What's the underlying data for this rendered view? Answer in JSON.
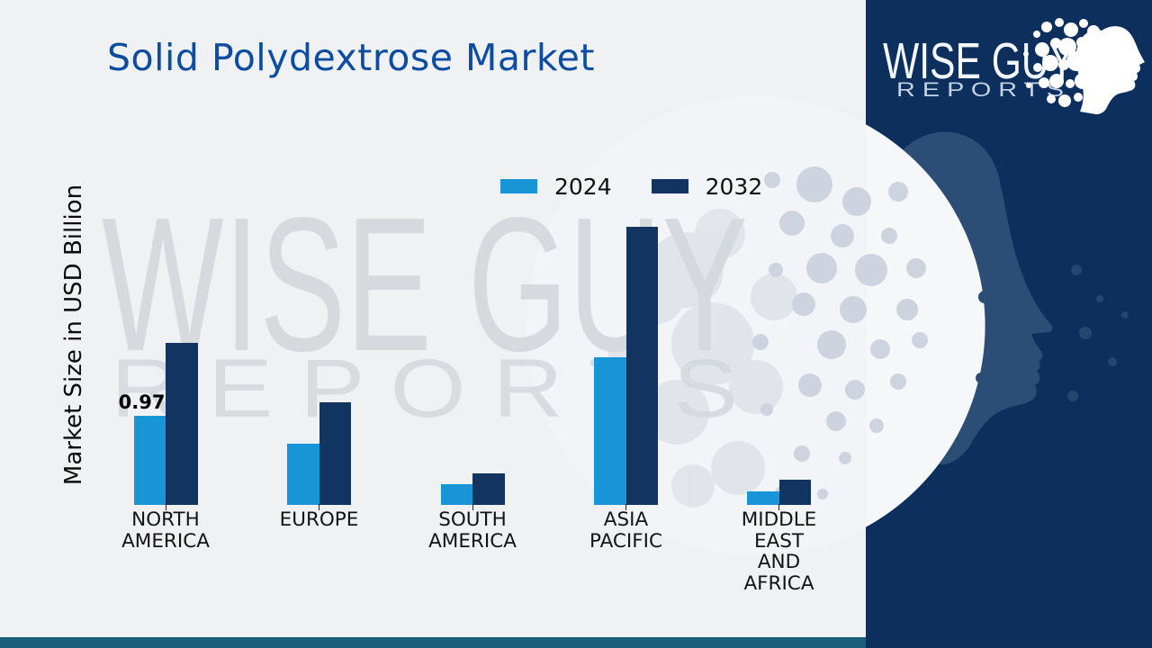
{
  "page": {
    "background_color": "#f0f1f2",
    "bottom_bar_color": "#1b5e7d"
  },
  "branding": {
    "logo": {
      "line1": "WISE GUY",
      "line2": "R E P O R T S"
    },
    "watermark": {
      "line1": "WISE GUY",
      "line2": "R E P O R T S"
    },
    "panel_color": "#0c2f5e",
    "face_color": "#2b4d76"
  },
  "chart_data": {
    "type": "bar",
    "title": "Solid Polydextrose Market",
    "title_color": "#0c4da2",
    "xlabel": "",
    "ylabel": "Market Size in USD Billion",
    "categories": [
      "NORTH AMERICA",
      "EUROPE",
      "SOUTH AMERICA",
      "ASIA PACIFIC",
      "MIDDLE EAST AND AFRICA"
    ],
    "category_label_lines": [
      [
        "NORTH",
        "AMERICA"
      ],
      [
        "EUROPE"
      ],
      [
        "SOUTH",
        "AMERICA"
      ],
      [
        "ASIA",
        "PACIFIC"
      ],
      [
        "MIDDLE",
        "EAST",
        "AND",
        "AFRICA"
      ]
    ],
    "series": [
      {
        "name": "2024",
        "color": "#1795d6",
        "values": [
          0.97,
          0.66,
          0.22,
          1.6,
          0.15
        ]
      },
      {
        "name": "2032",
        "color": "#113560",
        "values": [
          1.76,
          1.11,
          0.34,
          3.01,
          0.27
        ]
      }
    ],
    "ylim": [
      0,
      3.2
    ],
    "grid": false,
    "legend_position": "top",
    "annotations": [
      {
        "series": "2024",
        "category": "NORTH AMERICA",
        "text": "0.97"
      }
    ]
  }
}
